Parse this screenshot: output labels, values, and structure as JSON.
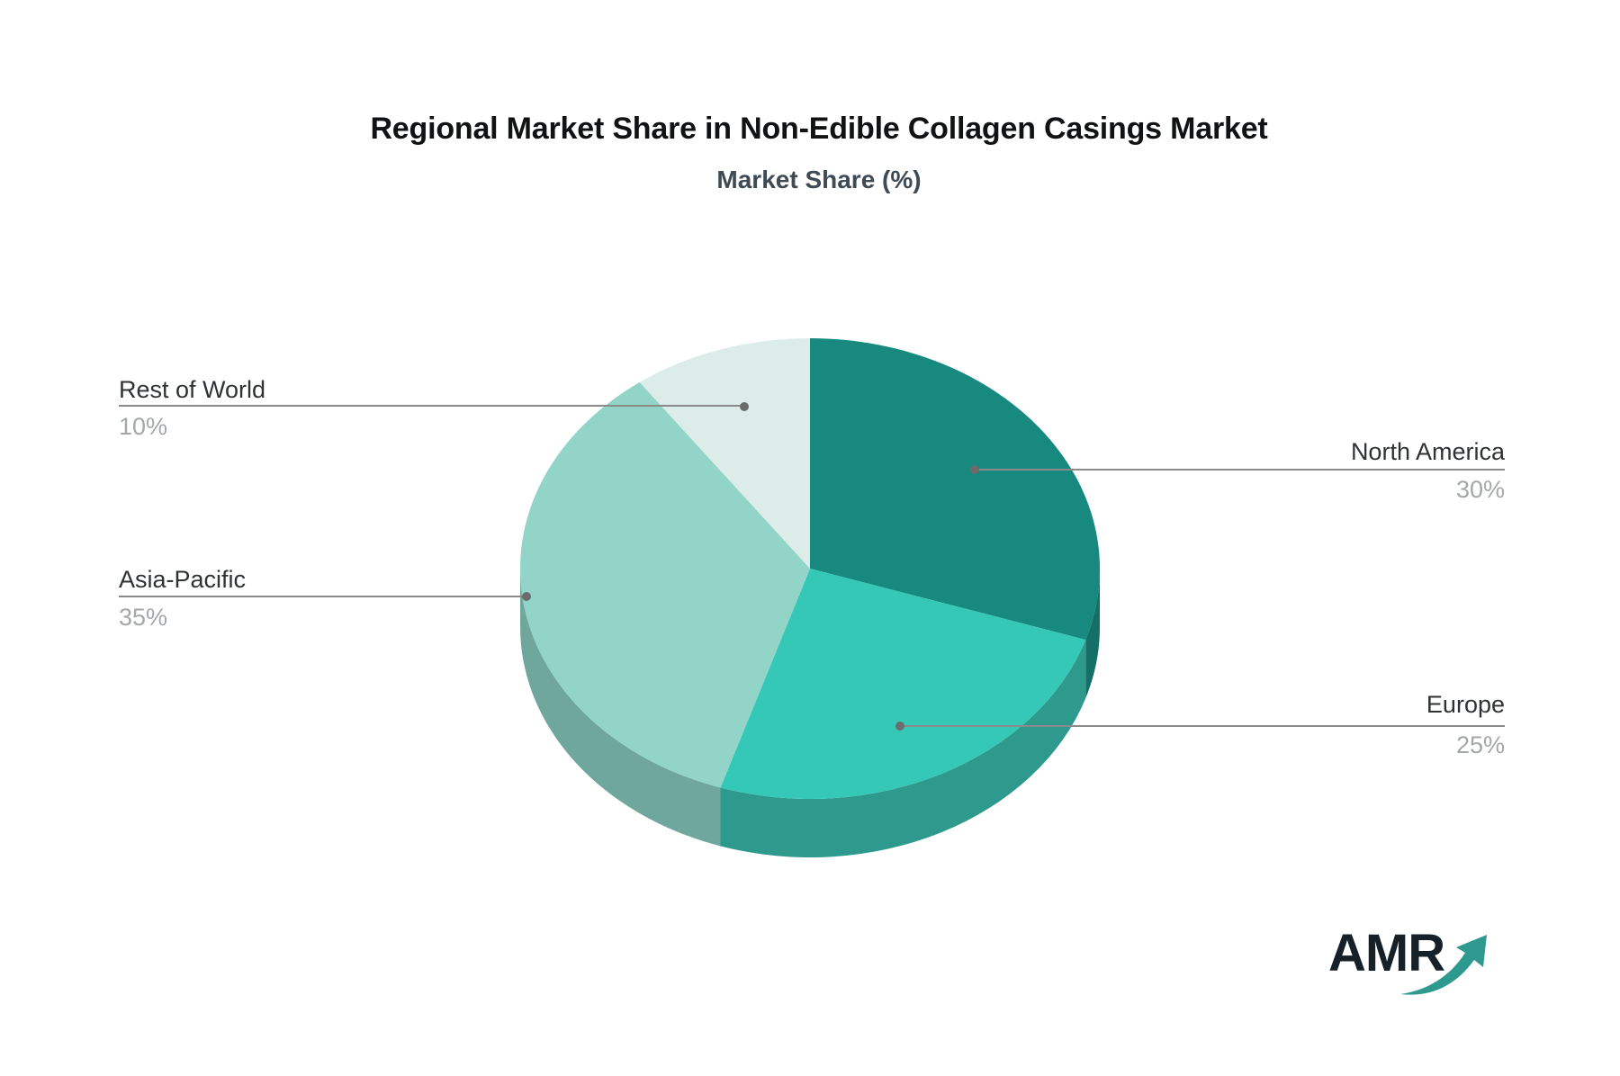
{
  "title": "Regional Market Share in Non-Edible Collagen Casings Market",
  "subtitle": "Market Share (%)",
  "logo": {
    "text": "AMR"
  },
  "chart_data": {
    "type": "pie",
    "style": "3d",
    "title": "Regional Market Share in Non-Edible Collagen Casings Market",
    "subtitle": "Market Share (%)",
    "start_angle_deg": 0,
    "direction": "clockwise",
    "legend": "none",
    "slices": [
      {
        "label": "North America",
        "value": 30,
        "pct_label": "30%",
        "color": "#17897E",
        "side_color": "#136F67",
        "label_side": "right"
      },
      {
        "label": "Europe",
        "value": 25,
        "pct_label": "25%",
        "color": "#35C8B7",
        "side_color": "#2E998D",
        "label_side": "right"
      },
      {
        "label": "Asia-Pacific",
        "value": 35,
        "pct_label": "35%",
        "color": "#92D4C8",
        "side_color": "#6FA79C",
        "label_side": "left"
      },
      {
        "label": "Rest of World",
        "value": 10,
        "pct_label": "10%",
        "color": "#DCEDE9",
        "side_color": "#B7CFCA",
        "label_side": "left"
      }
    ],
    "colors": {
      "leader_line": "#8A8A8A",
      "leader_dot": "#6B6B6B",
      "label_text": "#2F3235",
      "pct_text": "#A4A7AA"
    }
  }
}
